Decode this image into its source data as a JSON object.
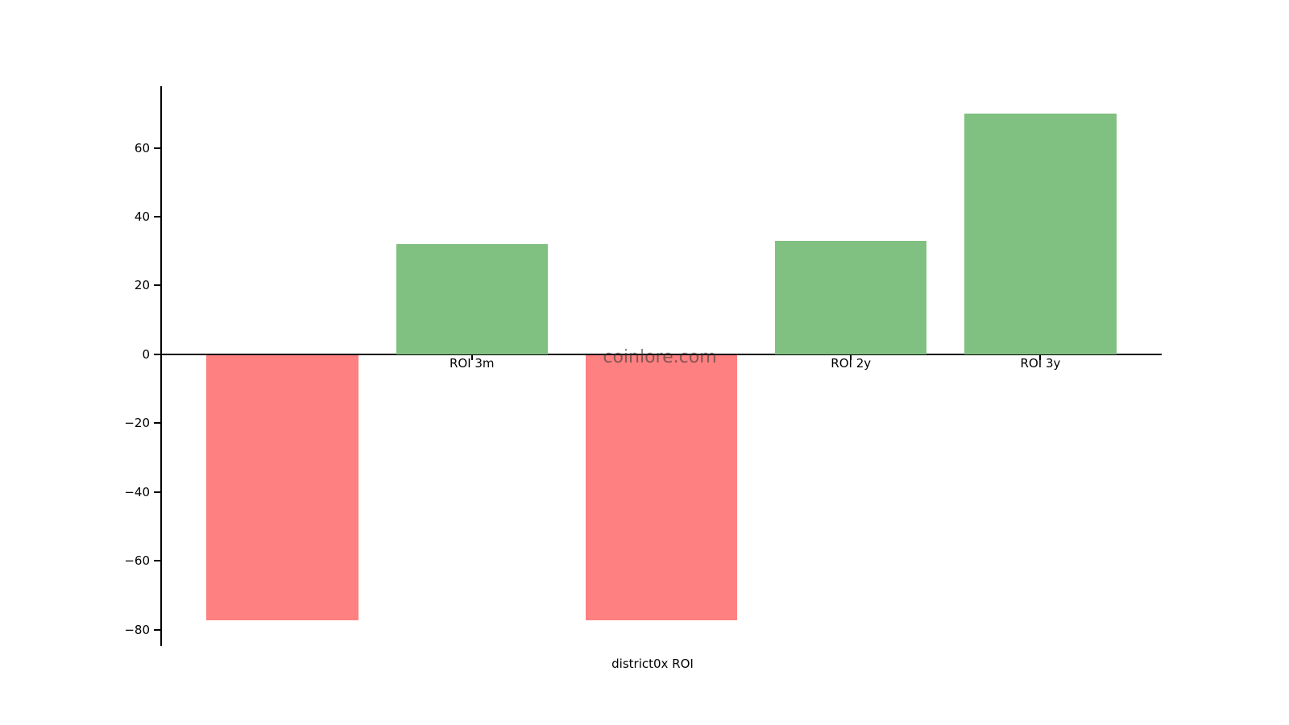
{
  "watermark": "coinlore.com",
  "chart_data": {
    "type": "bar",
    "title": "",
    "xlabel": "district0x ROI",
    "ylabel": "",
    "categories": [
      "",
      "ROI 3m",
      "",
      "ROI 2y",
      "ROI 3y"
    ],
    "values": [
      -77,
      32,
      -77,
      33,
      70
    ],
    "yticks": [
      60,
      40,
      20,
      0,
      -20,
      -40,
      -60,
      -80
    ],
    "ytick_labels": [
      "60",
      "40",
      "20",
      "0",
      "−20",
      "−40",
      "−60",
      "−80"
    ],
    "ylim": [
      -84.7,
      77.9
    ],
    "xlim": [
      -0.64,
      4.64
    ],
    "bar_width": 0.8,
    "positive_color": "#80c080",
    "negative_color": "#ff8080",
    "axis_color": "#000000",
    "grid": false,
    "legend": "none"
  }
}
